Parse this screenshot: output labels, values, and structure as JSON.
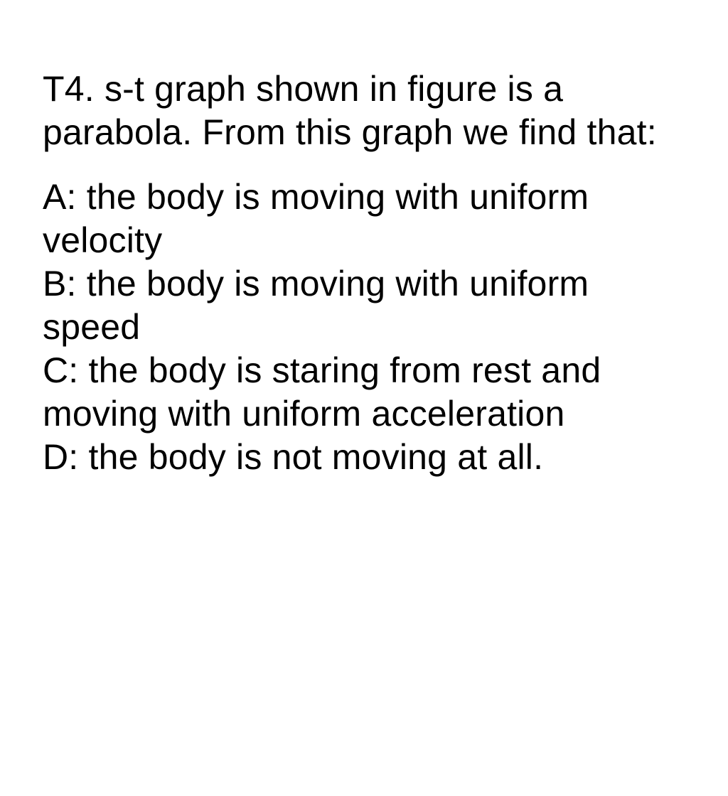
{
  "question": {
    "number": "T4.",
    "text": "s-t graph shown in figure is a parabola. From this graph we find that:"
  },
  "options": [
    {
      "label": "A:",
      "text": "the body is moving with uniform velocity"
    },
    {
      "label": "B:",
      "text": "the body is moving with uniform speed"
    },
    {
      "label": "C:",
      "text": "the body is staring from rest and moving with uniform acceleration"
    },
    {
      "label": "D:",
      "text": "the body is not moving at all."
    }
  ],
  "style": {
    "text_color": "#000000",
    "background_color": "#ffffff",
    "font_size_pt": 37,
    "font_family": "Arial"
  }
}
